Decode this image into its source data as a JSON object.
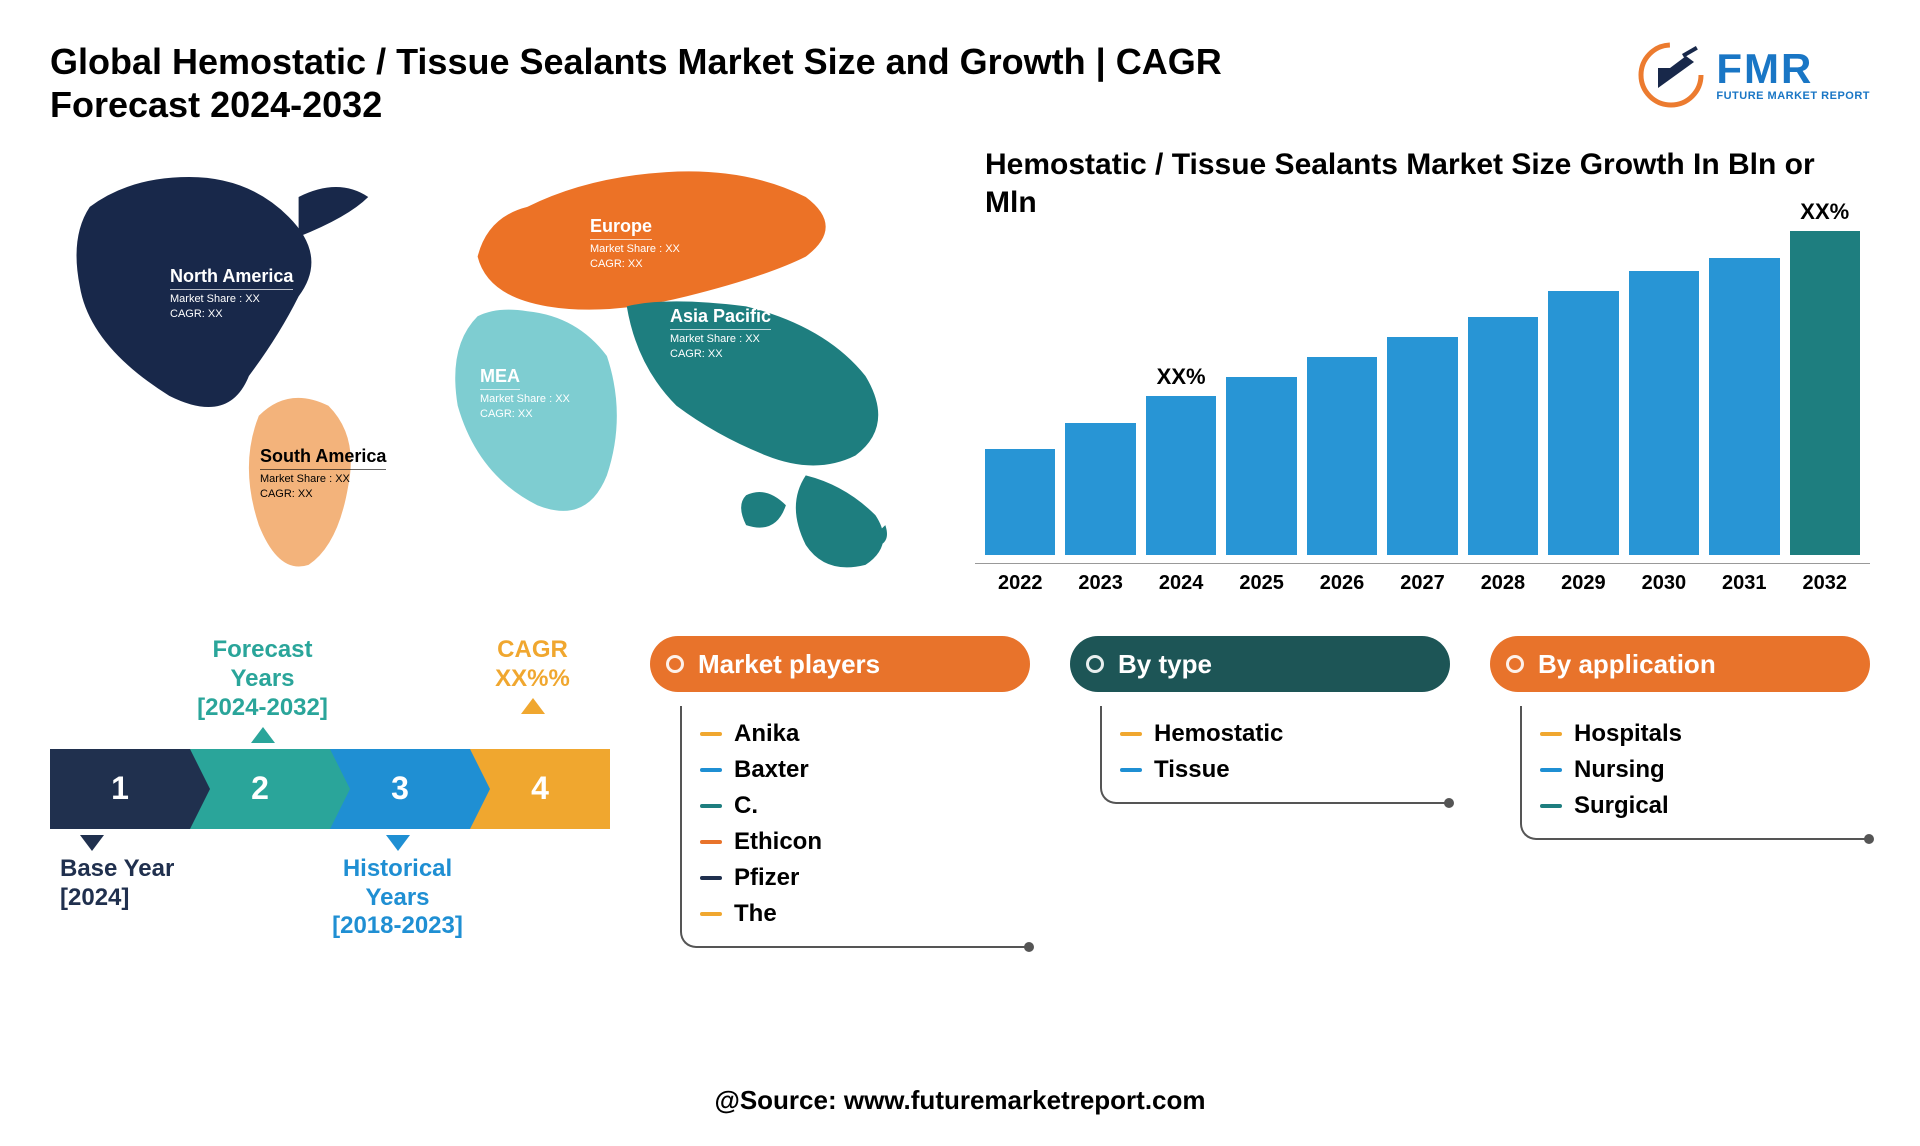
{
  "title": "Global Hemostatic / Tissue Sealants Market Size and Growth | CAGR Forecast 2024-2032",
  "logo": {
    "brand": "FMR",
    "subtitle": "FUTURE MARKET REPORT",
    "accent": "#ec7b2f",
    "text_color": "#1976c5"
  },
  "map": {
    "regions": [
      {
        "name": "North America",
        "share": "Market Share : XX",
        "cagr": "CAGR: XX",
        "color": "#18284a"
      },
      {
        "name": "South America",
        "share": "Market Share : XX",
        "cagr": "CAGR: XX",
        "color": "#f3b37b"
      },
      {
        "name": "Europe",
        "share": "Market Share : XX",
        "cagr": "CAGR: XX",
        "color": "#ec7226"
      },
      {
        "name": "MEA",
        "share": "Market Share : XX",
        "cagr": "CAGR: XX",
        "color": "#7ecdd1"
      },
      {
        "name": "Asia Pacific",
        "share": "Market Share : XX",
        "cagr": "CAGR: XX",
        "color": "#1e7e7f"
      }
    ]
  },
  "chart": {
    "title": "Hemostatic / Tissue Sealants Market Size Growth In Bln or Mln",
    "type": "bar",
    "categories": [
      "2022",
      "2023",
      "2024",
      "2025",
      "2026",
      "2027",
      "2028",
      "2029",
      "2030",
      "2031",
      "2032"
    ],
    "values": [
      32,
      40,
      48,
      54,
      60,
      66,
      72,
      80,
      86,
      90,
      98
    ],
    "ylim": [
      0,
      100
    ],
    "annotations": [
      {
        "index": 2,
        "text": "XX%"
      },
      {
        "index": 10,
        "text": "XX%"
      }
    ],
    "bar_color": "#2895d5",
    "bar_color_alt": "#1e7e7f",
    "label_fontsize": 20,
    "title_fontsize": 30
  },
  "timeline": {
    "segments": [
      {
        "num": "1",
        "color": "#20304e"
      },
      {
        "num": "2",
        "color": "#2aa59a"
      },
      {
        "num": "3",
        "color": "#1f8fd3"
      },
      {
        "num": "4",
        "color": "#f0a72f"
      }
    ],
    "labels": {
      "base": {
        "text": "Base Year",
        "sub": "[2024]",
        "color": "#20304e",
        "pos": "bottom-left"
      },
      "forecast": {
        "text": "Forecast Years",
        "sub": "[2024-2032]",
        "color": "#2aa59a",
        "pos": "top-center-left"
      },
      "historical": {
        "text": "Historical Years",
        "sub": "[2018-2023]",
        "color": "#1f8fd3",
        "pos": "bottom-center-right"
      },
      "cagr": {
        "text": "CAGR",
        "sub": "XX%%",
        "color": "#f0a72f",
        "pos": "top-right"
      }
    }
  },
  "pills": [
    {
      "header": "Market players",
      "bg": "#e8732b",
      "items": [
        {
          "label": "Anika",
          "tick": "#f0a72f"
        },
        {
          "label": "Baxter",
          "tick": "#1f8fd3"
        },
        {
          "label": "C.",
          "tick": "#1e7e7f"
        },
        {
          "label": "Ethicon",
          "tick": "#e8732b"
        },
        {
          "label": "Pfizer",
          "tick": "#20304e"
        },
        {
          "label": "The",
          "tick": "#f0a72f"
        }
      ]
    },
    {
      "header": "By type",
      "bg": "#1d5556",
      "items": [
        {
          "label": "Hemostatic",
          "tick": "#f0a72f"
        },
        {
          "label": "Tissue",
          "tick": "#1f8fd3"
        }
      ]
    },
    {
      "header": "By application",
      "bg": "#e8732b",
      "items": [
        {
          "label": "Hospitals",
          "tick": "#f0a72f"
        },
        {
          "label": "Nursing",
          "tick": "#1f8fd3"
        },
        {
          "label": "Surgical",
          "tick": "#1e7e7f"
        }
      ]
    }
  ],
  "source": "@Source: www.futuremarketreport.com"
}
